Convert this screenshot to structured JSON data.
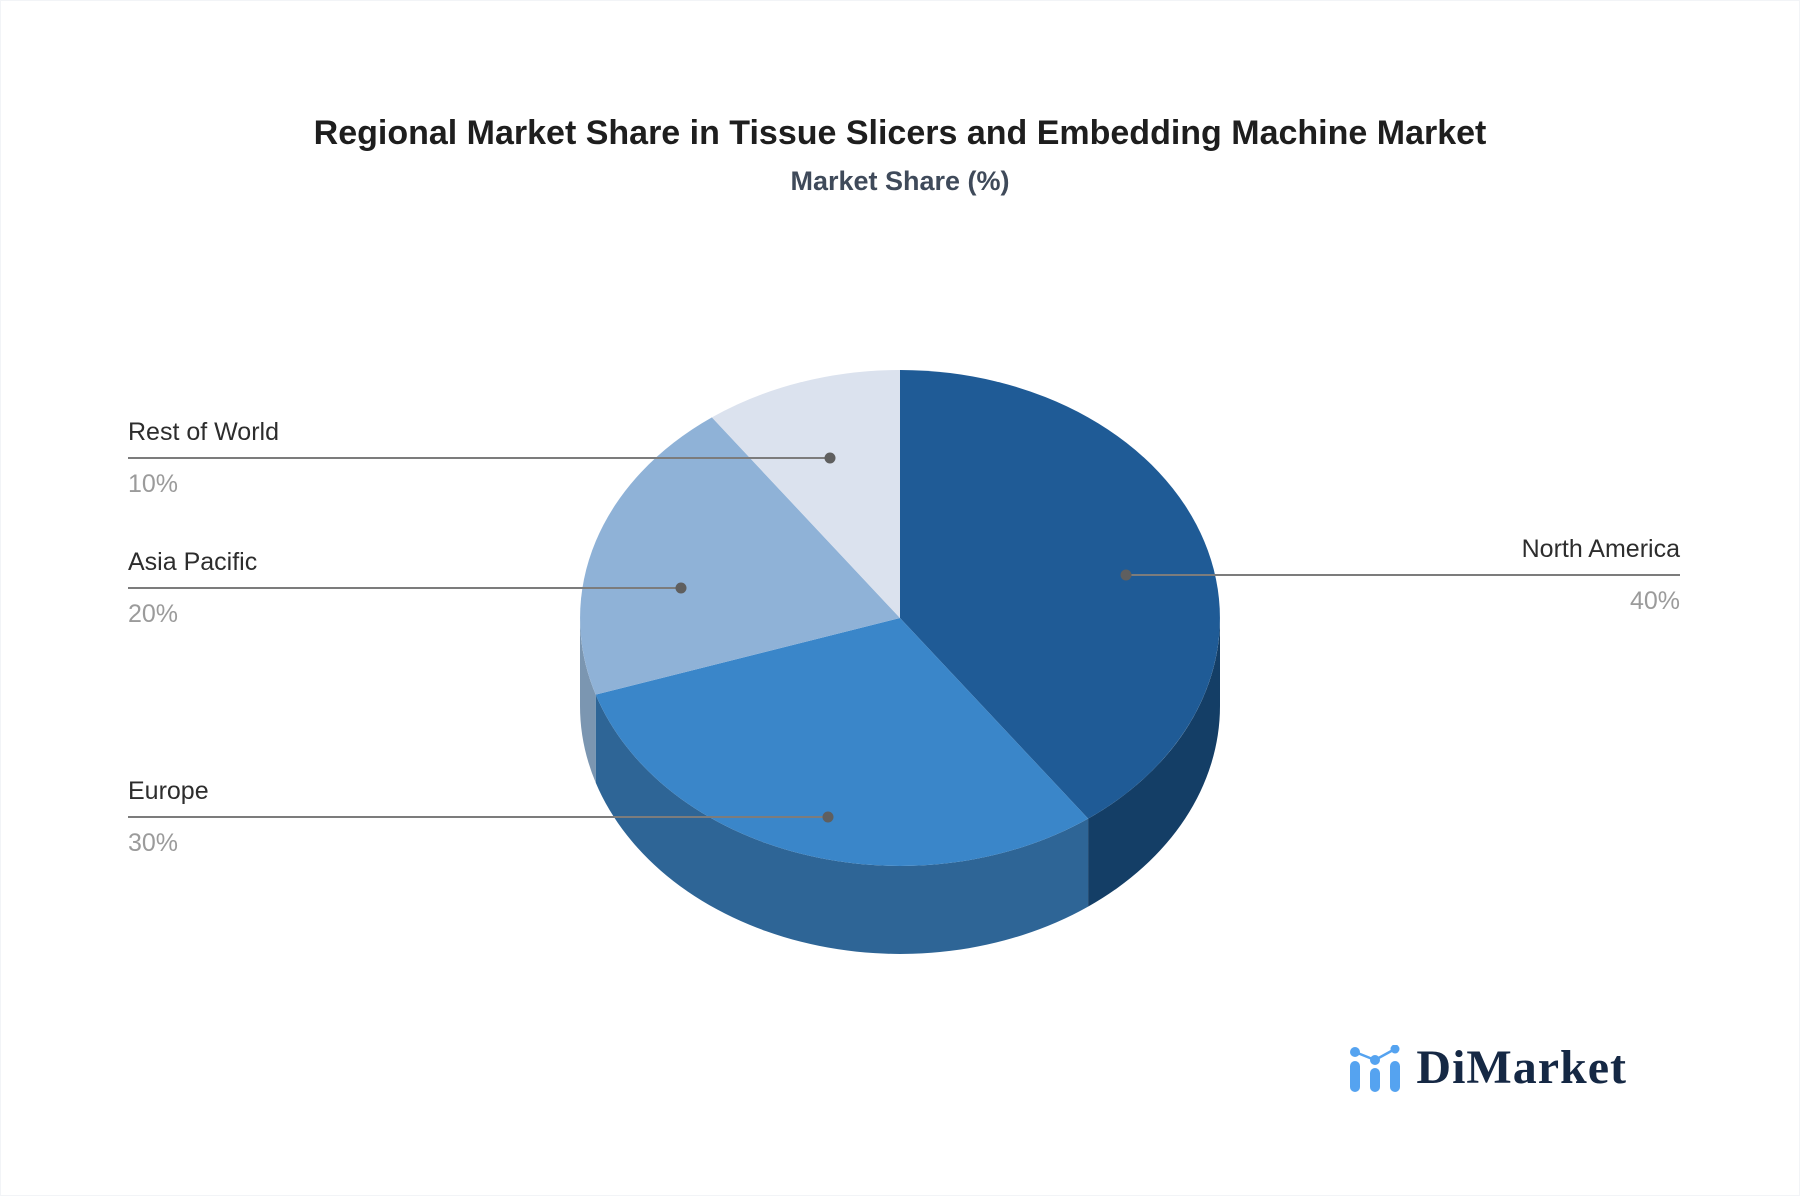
{
  "title": "Regional Market Share in Tissue Slicers and Embedding Machine Market",
  "subtitle": "Market Share (%)",
  "chart_data": {
    "type": "pie",
    "style": "3d",
    "unit": "%",
    "total": 100,
    "start_angle_deg": 0,
    "clockwise": true,
    "legend": "none",
    "label_line_color": "#7c7c7c",
    "label_dot_color": "#5f5f5f",
    "label_color": "#2d2d2d",
    "pct_color": "#9b9b9b",
    "slices": [
      {
        "label": "North America",
        "value": 40,
        "pct_label": "40%",
        "color": "#1F5B96",
        "side_color": "#143E66",
        "label_side": "right",
        "dot": [
          1126,
          575
        ]
      },
      {
        "label": "Europe",
        "value": 30,
        "pct_label": "30%",
        "color": "#3A86C9",
        "side_color": "#2E6596",
        "label_side": "left",
        "dot": [
          828,
          817
        ]
      },
      {
        "label": "Asia Pacific",
        "value": 20,
        "pct_label": "20%",
        "color": "#8FB2D7",
        "side_color": "#7B96B1",
        "label_side": "left",
        "dot": [
          681,
          588
        ]
      },
      {
        "label": "Rest of World",
        "value": 10,
        "pct_label": "10%",
        "color": "#DBE2EE",
        "side_color": "#C2CBD9",
        "label_side": "left",
        "dot": [
          830,
          458
        ]
      }
    ]
  },
  "logo": {
    "text": "DiMarket",
    "icon": "bar-chart-trend-icon",
    "icon_color": "#55A3F0",
    "text_color": "#152844"
  }
}
